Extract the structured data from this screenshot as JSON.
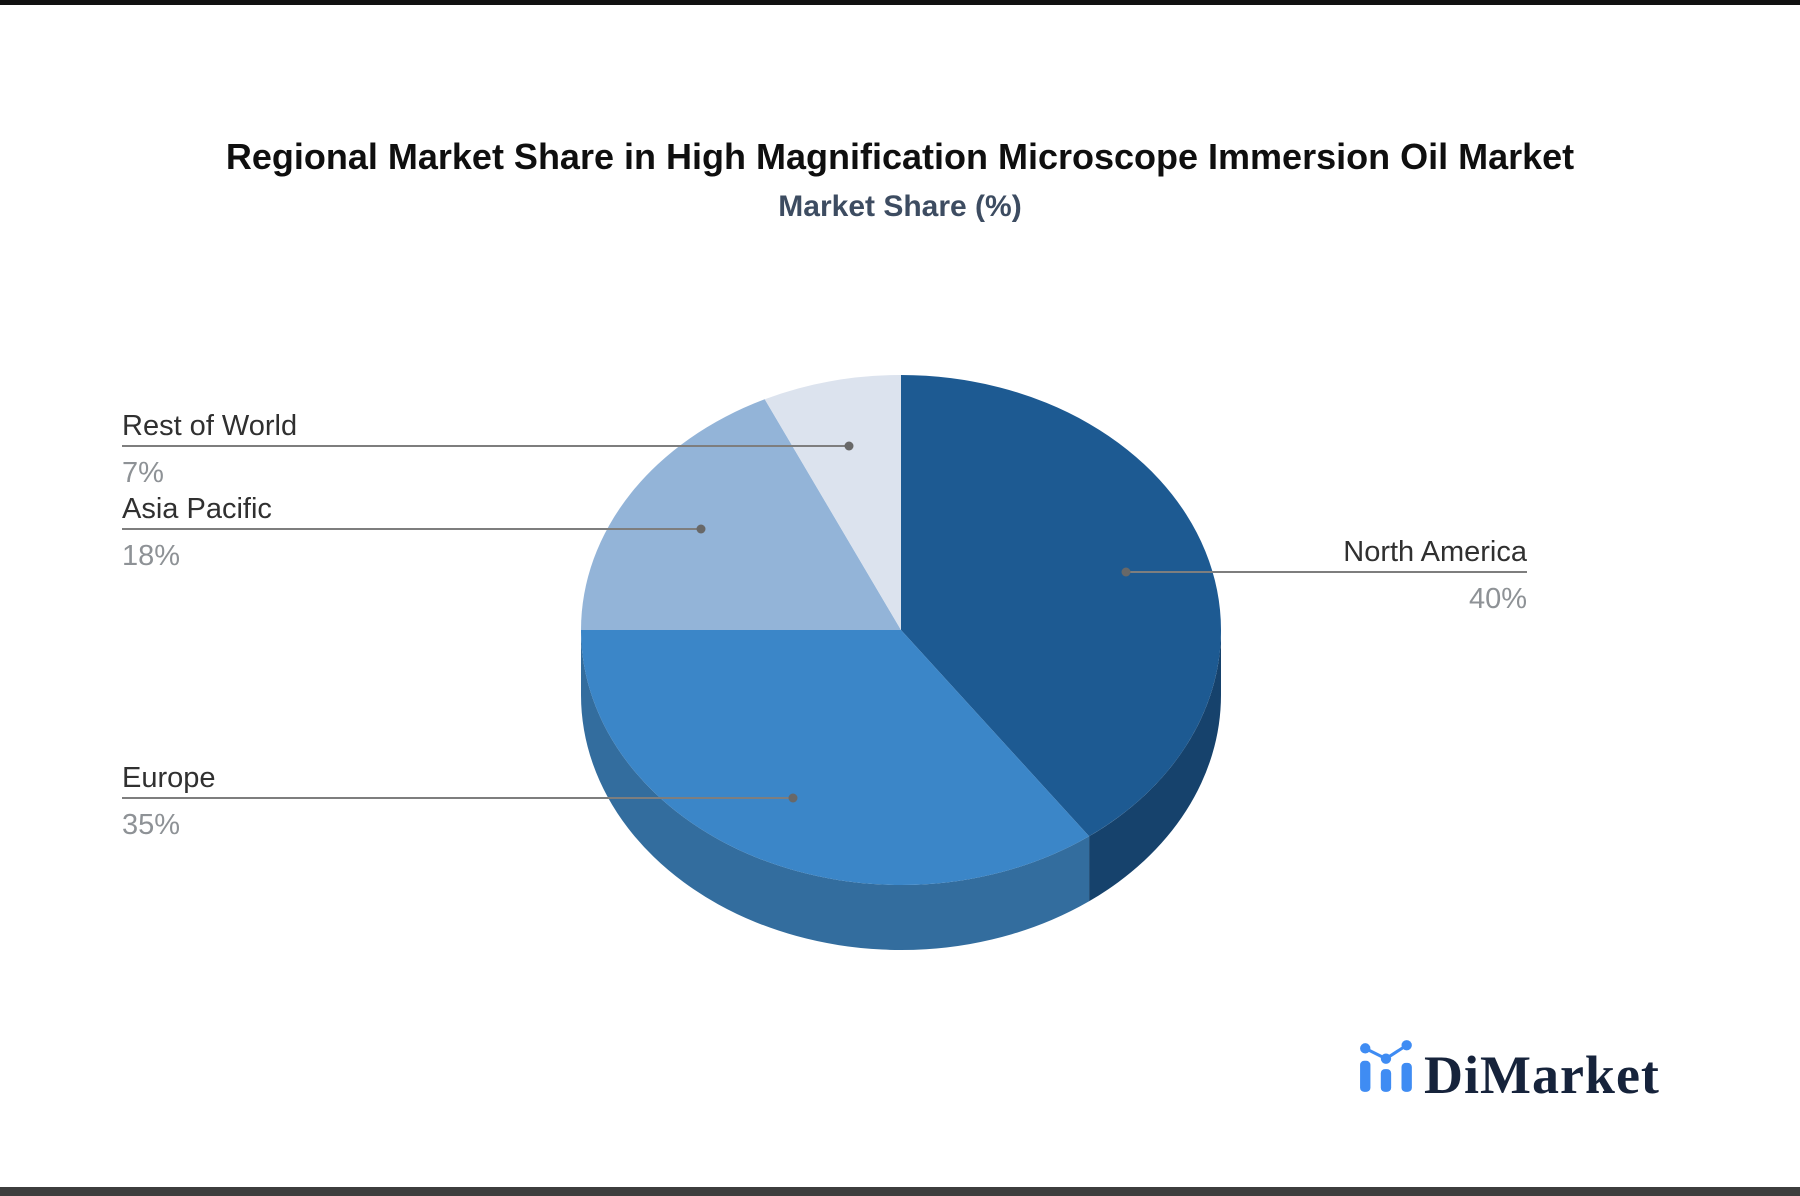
{
  "header": {
    "title": "Regional Market Share in High Magnification Microscope Immersion Oil Market",
    "subtitle": "Market Share (%)"
  },
  "branding": {
    "name": "DiMarket",
    "icon": "bar-line-chart-icon",
    "icon_color": "#3f8cf3",
    "text_color": "#16233b"
  },
  "chart_data": {
    "type": "pie",
    "title": "Regional Market Share in High Magnification Microscope Immersion Oil Market",
    "subtitle": "Market Share (%)",
    "unit": "%",
    "start_angle_deg": 0,
    "clockwise": true,
    "effect_3d": true,
    "legend_position": "none",
    "slices": [
      {
        "label": "North America",
        "value": 40,
        "pct_label": "40%",
        "color": "#1d5a92",
        "depth_color": "#16426c",
        "label_side": "right"
      },
      {
        "label": "Europe",
        "value": 35,
        "pct_label": "35%",
        "color": "#3b86c8",
        "depth_color": "#336d9e",
        "label_side": "left"
      },
      {
        "label": "Asia Pacific",
        "value": 18,
        "pct_label": "18%",
        "color": "#93b4d8",
        "depth_color": "#6e8fb4",
        "label_side": "left"
      },
      {
        "label": "Rest of World",
        "value": 7,
        "pct_label": "7%",
        "color": "#dce3ee",
        "depth_color": "#abb7c9",
        "label_side": "left"
      }
    ],
    "label_color": "#303030",
    "pct_color": "#8e9296",
    "leader_line_color": "#7e7e7e",
    "leader_dot_color": "#686868"
  }
}
